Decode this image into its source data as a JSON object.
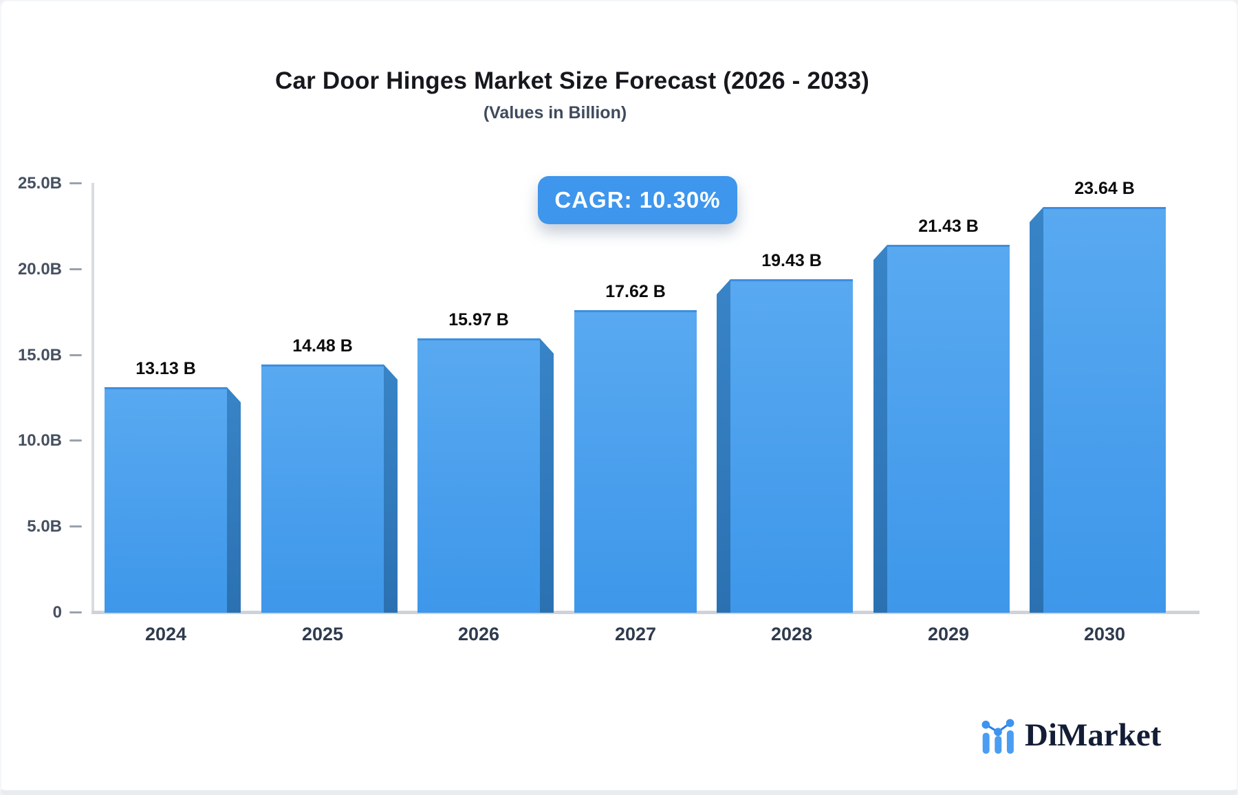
{
  "chart_data": {
    "type": "bar",
    "title": "Car Door Hinges Market Size Forecast (2026 - 2033)",
    "subtitle": "(Values in Billion)",
    "categories": [
      "2024",
      "2025",
      "2026",
      "2027",
      "2028",
      "2029",
      "2030"
    ],
    "values": [
      13.13,
      14.48,
      15.97,
      17.62,
      19.43,
      21.43,
      23.64
    ],
    "value_labels": [
      "13.13 B",
      "14.48 B",
      "15.97 B",
      "17.62 B",
      "19.43 B",
      "21.43 B",
      "23.64 B"
    ],
    "unit": "Billion",
    "ylim": [
      0,
      25
    ],
    "y_ticks": [
      {
        "value": 25,
        "label": "25.0B"
      },
      {
        "value": 20,
        "label": "20.0B"
      },
      {
        "value": 15,
        "label": "15.0B"
      },
      {
        "value": 10,
        "label": "10.0B"
      },
      {
        "value": 5,
        "label": "5.0B"
      },
      {
        "value": 0,
        "label": "0"
      }
    ],
    "grid": false,
    "legend": false,
    "bar_style": "3d-bevel"
  },
  "cagr_badge": {
    "label": "CAGR: 10.30%"
  },
  "footer_logo": {
    "name": "DiMarket"
  },
  "colors": {
    "bar_face_top": "#58a9f0",
    "bar_face_bottom": "#3e97ea",
    "bar_side": "#2e76b8",
    "badge_bg": "#3e96ed",
    "badge_text": "#ffffff",
    "axis_line": "#d8dbdf",
    "baseline": "#cfd3d8",
    "tick": "#9aa1ab",
    "title_text": "#16181d",
    "subtitle_text": "#3f4a5c",
    "value_label_text": "#0b0b0b",
    "logo_blue": "#4a9df2",
    "logo_text": "#131d36"
  }
}
